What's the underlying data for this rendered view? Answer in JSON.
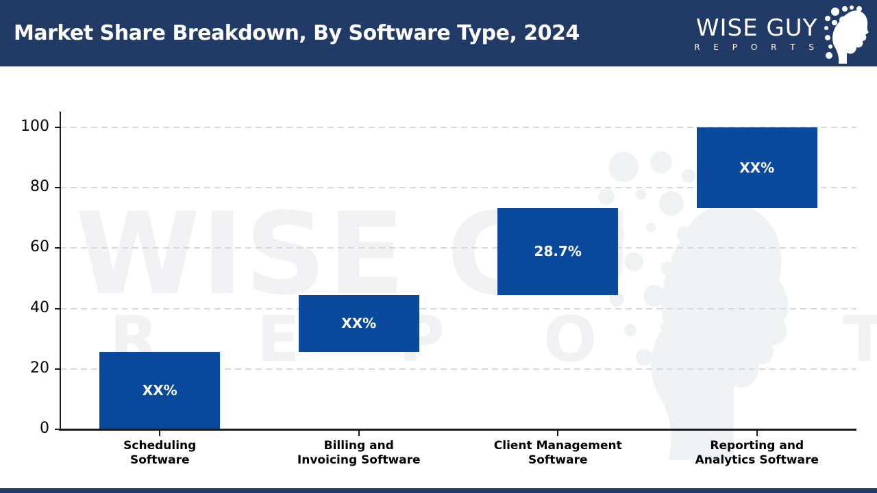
{
  "header": {
    "title": "Market Share Breakdown, By Software Type, 2024",
    "logo": {
      "line1": "WISE GUY",
      "line2": "R E P O R T S"
    }
  },
  "watermark": {
    "line1": "WISE GU",
    "line2": "R E P O R T S"
  },
  "chart_data": {
    "type": "bar",
    "subtype": "floating-waterfall",
    "title": "Market Share Breakdown, By Software Type, 2024",
    "categories": [
      [
        "Scheduling",
        "Software"
      ],
      [
        "Billing and",
        "Invoicing Software"
      ],
      [
        "Client Management",
        "Software"
      ],
      [
        "Reporting and",
        "Analytics Software"
      ]
    ],
    "segments": [
      {
        "start": 0,
        "end": 25.7,
        "label": "XX%"
      },
      {
        "start": 25.7,
        "end": 44.5,
        "label": "XX%"
      },
      {
        "start": 44.5,
        "end": 73.2,
        "label": "28.7%"
      },
      {
        "start": 73.2,
        "end": 100,
        "label": "XX%"
      }
    ],
    "y_ticks": [
      0,
      20,
      40,
      60,
      80,
      100
    ],
    "ylim": [
      0,
      100
    ],
    "xlabel": "",
    "ylabel": "",
    "grid": "horizontal-dashed",
    "legend": "none",
    "bar_color": "#0a4a9d",
    "bar_label_color": "#ffffff"
  },
  "colors": {
    "header_bg": "#213a66",
    "bar": "#0a4a9d",
    "axis": "#1a1a1a",
    "grid": "#d9d9d9",
    "watermark": "#f1f1f3"
  }
}
